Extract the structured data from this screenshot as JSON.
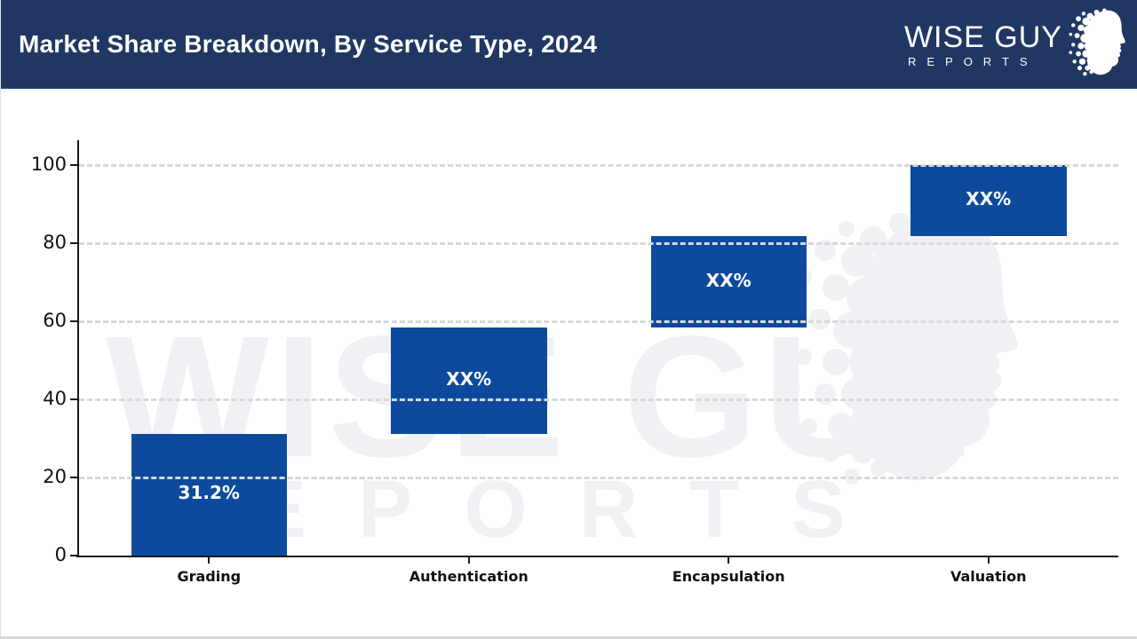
{
  "header": {
    "title": "Market Share Breakdown, By Service Type, 2024",
    "logo": {
      "line1": "WISE GUY",
      "line2": "REPORTS"
    }
  },
  "watermark": {
    "line1": "WISE GUY",
    "line2": "REPORTS"
  },
  "colors": {
    "header_bg": "#213763",
    "bar": "#0d4a9d",
    "bar_label": "#ffffff",
    "gridline": "#d8d8d8",
    "axis": "#1a1a1a",
    "watermark": "#f0f1f4",
    "title_text": "#ffffff"
  },
  "chart_data": {
    "type": "bar",
    "subtype": "waterfall",
    "title": "Market Share Breakdown, By Service Type, 2024",
    "categories": [
      "Grading",
      "Authentication",
      "Encapsulation",
      "Valuation"
    ],
    "segments": [
      {
        "category": "Grading",
        "label": "31.2%",
        "start": 0,
        "end": 31.2
      },
      {
        "category": "Authentication",
        "label": "XX%",
        "start": 31.2,
        "end": 58.4
      },
      {
        "category": "Encapsulation",
        "label": "XX%",
        "start": 58.4,
        "end": 81.8
      },
      {
        "category": "Valuation",
        "label": "XX%",
        "start": 81.8,
        "end": 100
      }
    ],
    "values_pct": [
      31.2,
      27.2,
      23.4,
      18.2
    ],
    "cumulative_pct": [
      31.2,
      58.4,
      81.8,
      100
    ],
    "bar_labels": [
      "31.2%",
      "XX%",
      "XX%",
      "XX%"
    ],
    "yticks": [
      0,
      20,
      40,
      60,
      80,
      100
    ],
    "ylim": [
      0,
      100
    ],
    "xlabel": "",
    "ylabel": "",
    "grid": "dashed-horizontal-over-bars",
    "legend": "none"
  }
}
